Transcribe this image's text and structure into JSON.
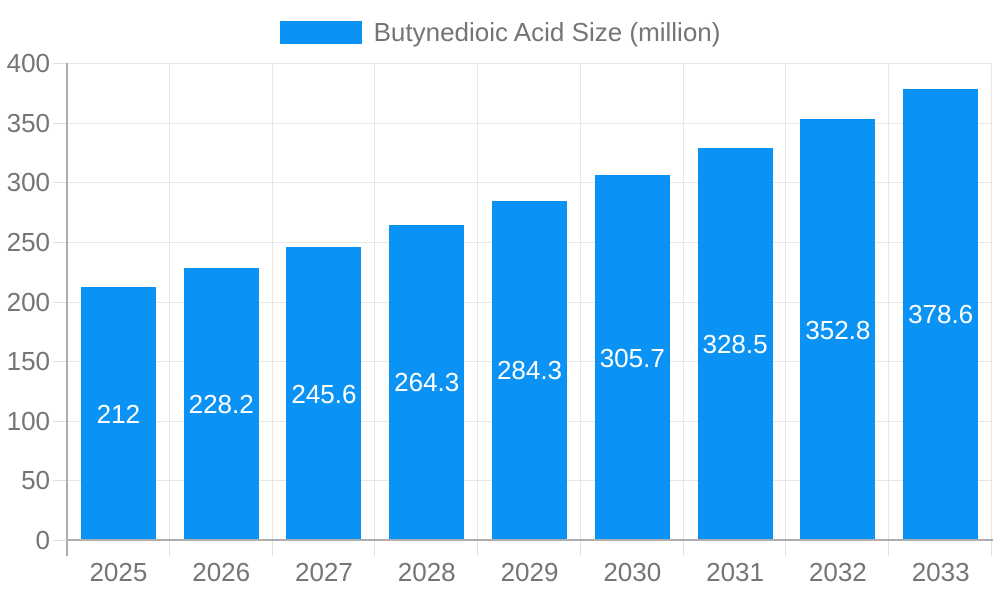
{
  "chart_data": {
    "type": "bar",
    "title": "Butynedioic Acid Size (million)",
    "categories": [
      "2025",
      "2026",
      "2027",
      "2028",
      "2029",
      "2030",
      "2031",
      "2032",
      "2033"
    ],
    "series": [
      {
        "name": "Butynedioic Acid Size (million)",
        "values": [
          212,
          228.2,
          245.6,
          264.3,
          284.3,
          305.7,
          328.5,
          352.8,
          378.6
        ],
        "value_labels": [
          "212",
          "228.2",
          "245.6",
          "264.3",
          "284.3",
          "305.7",
          "328.5",
          "352.8",
          "378.6"
        ]
      }
    ],
    "ylim": [
      0,
      400
    ],
    "ytick_step": 50,
    "ytick_labels": [
      "0",
      "50",
      "100",
      "150",
      "200",
      "250",
      "300",
      "350",
      "400"
    ],
    "grid": true,
    "legend_position": "top",
    "bar_label_position": "center",
    "colors": {
      "bar": "#0a93f5",
      "grid": "#e6e6e6",
      "axis": "#adadad",
      "tick": "#e0e0e0",
      "text": "#757575",
      "bar_label": "#ffffff",
      "background": "#ffffff"
    }
  },
  "legend": {
    "label": "Butynedioic Acid Size (million)"
  }
}
